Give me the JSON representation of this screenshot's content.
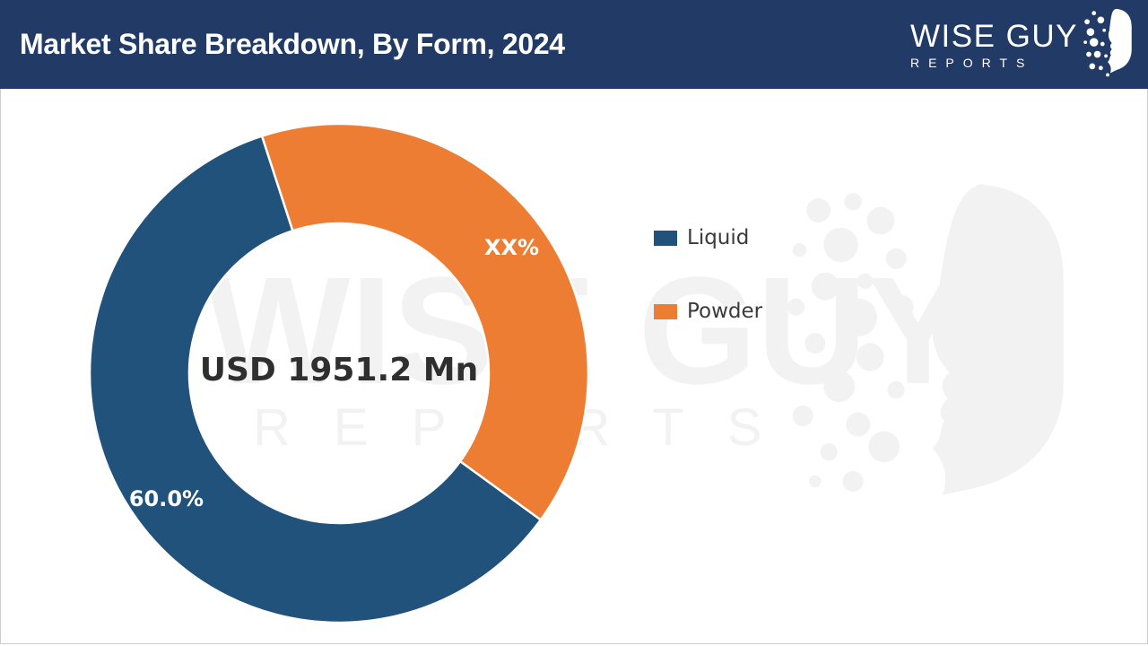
{
  "header": {
    "title": "Market Share Breakdown, By Form, 2024",
    "bg_color": "#213A66"
  },
  "logo": {
    "wordmark": "WISE GUY",
    "subtext": "REPORTS",
    "face_icon": "dotted-head-profile-icon"
  },
  "watermark": {
    "line1": "WISE GUY",
    "line2": "REPORTS",
    "face_icon": "dotted-head-profile-icon"
  },
  "chart_data": {
    "type": "pie",
    "subtype": "donut",
    "title": "Market Share Breakdown, By Form, 2024",
    "center_label": "USD 1951.2 Mn",
    "series": [
      {
        "name": "Liquid",
        "value_pct": 60.0,
        "data_label": "60.0%",
        "color": "#21527B"
      },
      {
        "name": "Powder",
        "value_pct": 40.0,
        "data_label": "XX%",
        "color": "#EC7D33"
      }
    ],
    "start_angle_deg": 126,
    "direction": "clockwise",
    "donut_hole_ratio": 0.6,
    "legend_position": "right"
  }
}
